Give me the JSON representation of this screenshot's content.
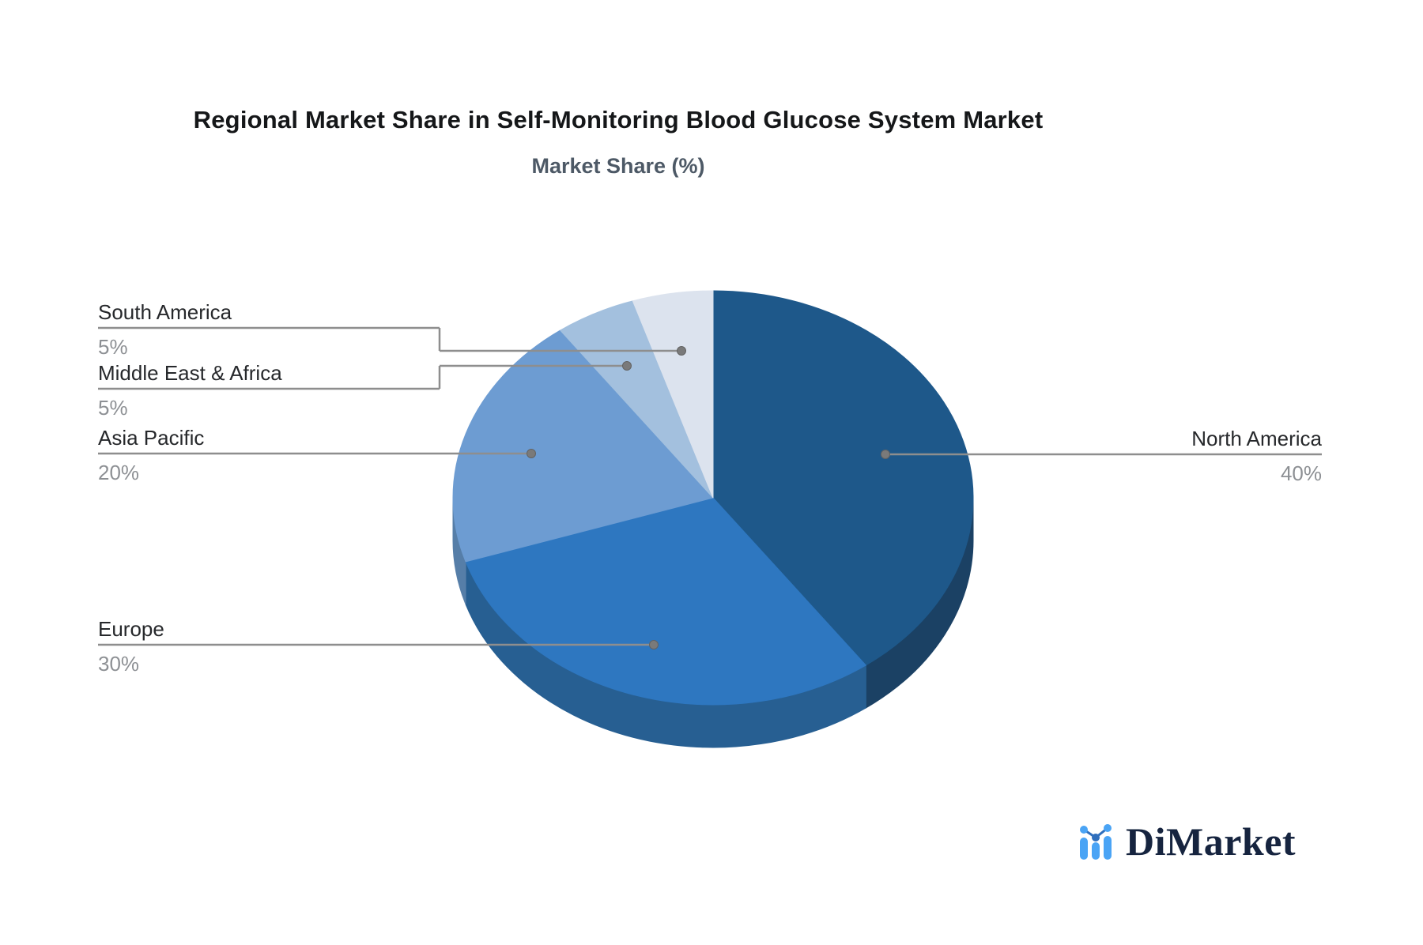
{
  "header": {
    "title": "Regional Market Share in Self-Monitoring Blood Glucose System Market",
    "subtitle": "Market Share (%)"
  },
  "chart_data": {
    "type": "pie",
    "title": "Regional Market Share in Self-Monitoring Blood Glucose System Market",
    "subtitle": "Market Share (%)",
    "unit": "%",
    "start_angle_deg": 0,
    "direction": "clockwise",
    "style": "3d-pie",
    "legend_position": "none",
    "slices": [
      {
        "label": "North America",
        "value": 40,
        "value_text": "40%",
        "color": "#1E588A",
        "side_color": "#1B4164"
      },
      {
        "label": "Europe",
        "value": 30,
        "value_text": "30%",
        "color": "#2E77C0",
        "side_color": "#275F92"
      },
      {
        "label": "Asia Pacific",
        "value": 20,
        "value_text": "20%",
        "color": "#6D9CD2",
        "side_color": "#567EA8"
      },
      {
        "label": "Middle East & Africa",
        "value": 5,
        "value_text": "5%",
        "color": "#A3C0DE",
        "side_color": "#8BA9C9"
      },
      {
        "label": "South America",
        "value": 5,
        "value_text": "5%",
        "color": "#DCE3EE",
        "side_color": "#BCC8D9"
      }
    ],
    "label_style": {
      "line_color": "#8E8E8E",
      "dot_color": "#7A7A7A",
      "label_color": "#26282B",
      "value_color": "#8D9094"
    }
  },
  "logo": {
    "text": "DiMarket",
    "bar_color": "#4AA4F5",
    "accent_color": "#2F6FBD",
    "text_color": "#16243F"
  }
}
